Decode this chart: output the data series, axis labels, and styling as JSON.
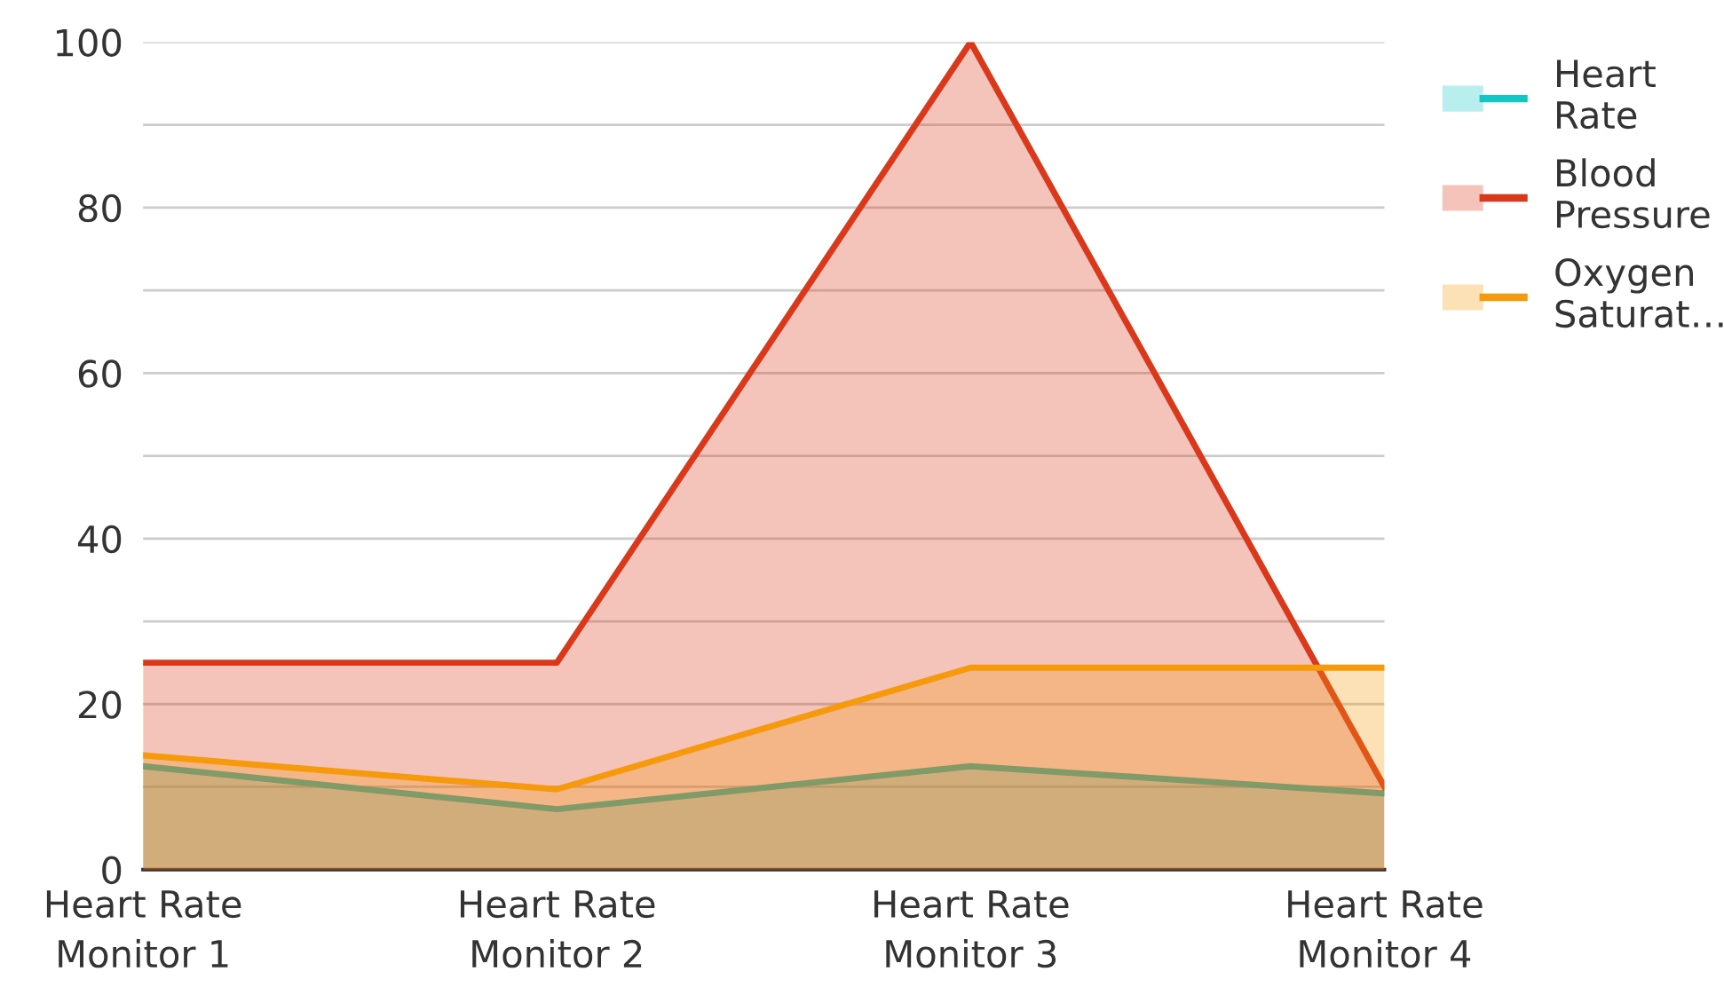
{
  "chart_data": {
    "type": "area",
    "categories": [
      "Heart Rate\nMonitor 1",
      "Heart Rate\nMonitor 2",
      "Heart Rate\nMonitor 3",
      "Heart Rate\nMonitor 4"
    ],
    "series": [
      {
        "name": "Heart\nRate",
        "color": "#13c6c2",
        "values": [
          12.5,
          7.3,
          12.5,
          9.2
        ]
      },
      {
        "name": "Blood\nPressure",
        "color": "#d9391a",
        "values": [
          25,
          25,
          100,
          10
        ]
      },
      {
        "name": "Oxygen\nSaturat…",
        "color": "#f5990d",
        "values": [
          13.8,
          9.7,
          24.4,
          24.4
        ]
      }
    ],
    "ylim": [
      0,
      100
    ],
    "yticks": [
      0,
      {
        "value": 10,
        "label": null
      },
      20,
      {
        "value": 30,
        "label": null
      },
      40,
      {
        "value": 50,
        "label": null
      },
      60,
      {
        "value": 70,
        "label": null
      },
      80,
      {
        "value": 90,
        "label": null
      },
      100
    ],
    "grid": "y",
    "legend": "top right",
    "line_style": "solid",
    "marker": "none"
  }
}
